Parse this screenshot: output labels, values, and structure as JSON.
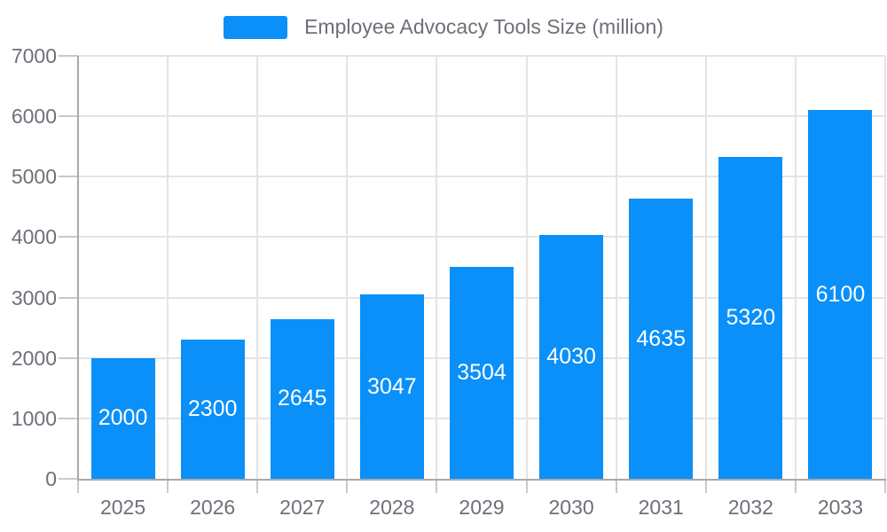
{
  "legend": {
    "label": "Employee Advocacy Tools Size (million)"
  },
  "chart_data": {
    "type": "bar",
    "series_name": "Employee Advocacy Tools Size (million)",
    "legend_entries": [
      "Employee Advocacy Tools Size (million)"
    ],
    "legend_position": "top-center",
    "categories": [
      "2025",
      "2026",
      "2027",
      "2028",
      "2029",
      "2030",
      "2031",
      "2032",
      "2033"
    ],
    "values": [
      2000,
      2300,
      2645,
      3047,
      3504,
      4030,
      4635,
      5320,
      6100
    ],
    "xlabel": "",
    "ylabel": "",
    "ylim": [
      0,
      7000
    ],
    "yticks": [
      0,
      1000,
      2000,
      3000,
      4000,
      5000,
      6000,
      7000
    ],
    "grid": true,
    "value_labels_position": "inside-center"
  },
  "colors": {
    "bar": "#0a90f8",
    "grid_line": "#e4e4e4",
    "axis_line": "#a9a9a9",
    "tick": "#c9c9c9",
    "label_text": "#6e7079",
    "value_text": "#ffffff",
    "background": "#ffffff"
  }
}
